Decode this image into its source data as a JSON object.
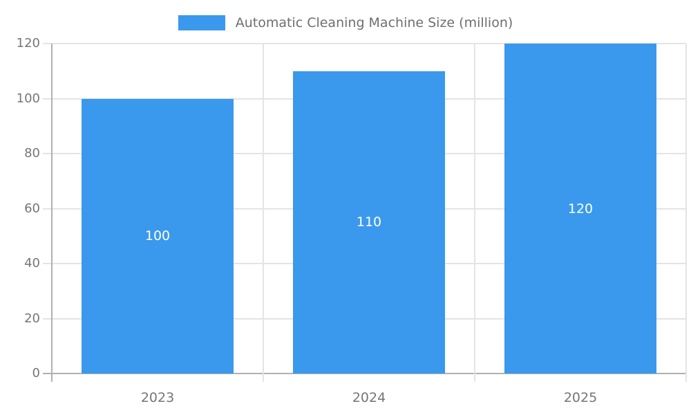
{
  "chart_data": {
    "type": "bar",
    "title": "Automatic Cleaning Machine Size (million)",
    "legend": {
      "position": "top",
      "entries": [
        {
          "label": "Automatic Cleaning Machine Size (million)",
          "swatch_color": "#3a99ec"
        }
      ]
    },
    "categories": [
      "2023",
      "2024",
      "2025"
    ],
    "series": [
      {
        "name": "Automatic Cleaning Machine Size (million)",
        "values": [
          100,
          110,
          120
        ]
      }
    ],
    "data_labels": [
      "100",
      "110",
      "120"
    ],
    "xlabel": "",
    "ylabel": "",
    "ylim": [
      0,
      120
    ],
    "yticks": [
      "0",
      "20",
      "40",
      "60",
      "80",
      "100",
      "120"
    ],
    "ytick_values": [
      0,
      20,
      40,
      60,
      80,
      100,
      120
    ],
    "grid": true,
    "colors": {
      "bar": "#3a99ec",
      "grid": "#e4e4e4",
      "axis": "#b0b0b0",
      "tick_text": "#757575",
      "legend_text": "#6e6e6e",
      "data_label_text": "#ffffff",
      "background": "#ffffff"
    }
  }
}
